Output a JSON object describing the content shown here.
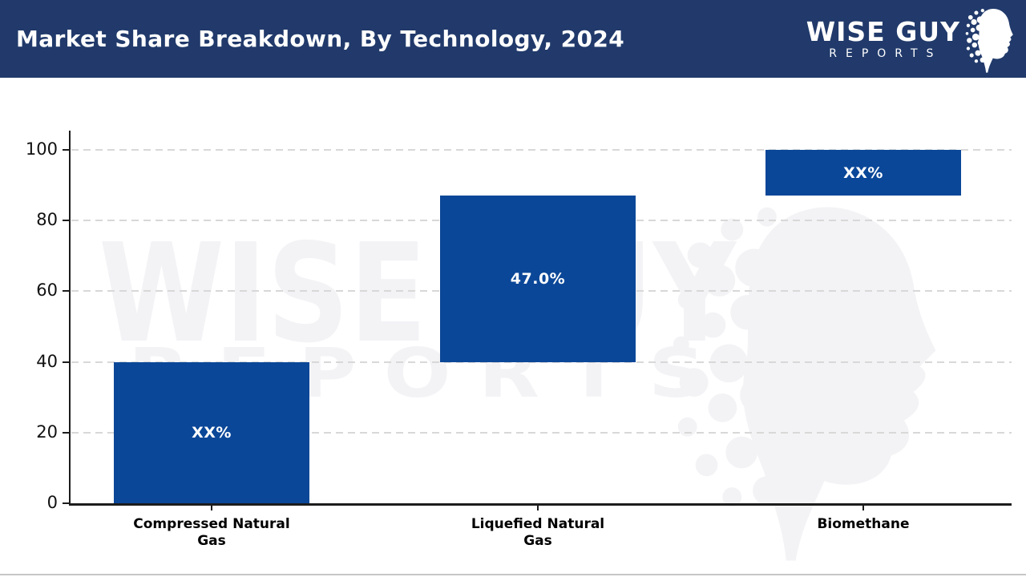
{
  "header": {
    "title": "Market Share Breakdown, By Technology, 2024",
    "logo": {
      "primary": "WISE GUY",
      "secondary": "REPORTS"
    }
  },
  "watermark": {
    "primary": "WISE GUY",
    "secondary": "R E P O R T S"
  },
  "colors": {
    "header_bg": "#213a6b",
    "bar_fill": "#0b4798",
    "bar_label": "#ffffff",
    "grid": "#d8d8d8",
    "axis": "#1c1c1c",
    "watermark": "#f3f3f6",
    "bottom_rule": "#c6c6c6"
  },
  "chart_data": {
    "type": "bar",
    "subtype": "waterfall",
    "title": "Market Share Breakdown, By Technology, 2024",
    "categories": [
      [
        "Compressed Natural",
        "Gas"
      ],
      [
        "Liquefied Natural",
        "Gas"
      ],
      [
        "Biomethane"
      ]
    ],
    "bars": [
      {
        "category": "Compressed Natural Gas",
        "label": "XX%",
        "start": 0,
        "end": 40
      },
      {
        "category": "Liquefied Natural Gas",
        "label": "47.0%",
        "start": 40,
        "end": 87
      },
      {
        "category": "Biomethane",
        "label": "XX%",
        "start": 87,
        "end": 100
      }
    ],
    "ylim": [
      0,
      100
    ],
    "yticks": [
      0,
      20,
      40,
      60,
      80,
      100
    ],
    "xlabel": "",
    "ylabel": "",
    "grid": "horizontal-dashed",
    "legend": "none",
    "bar_color": "#0b4798",
    "bar_label_color": "#ffffff"
  }
}
